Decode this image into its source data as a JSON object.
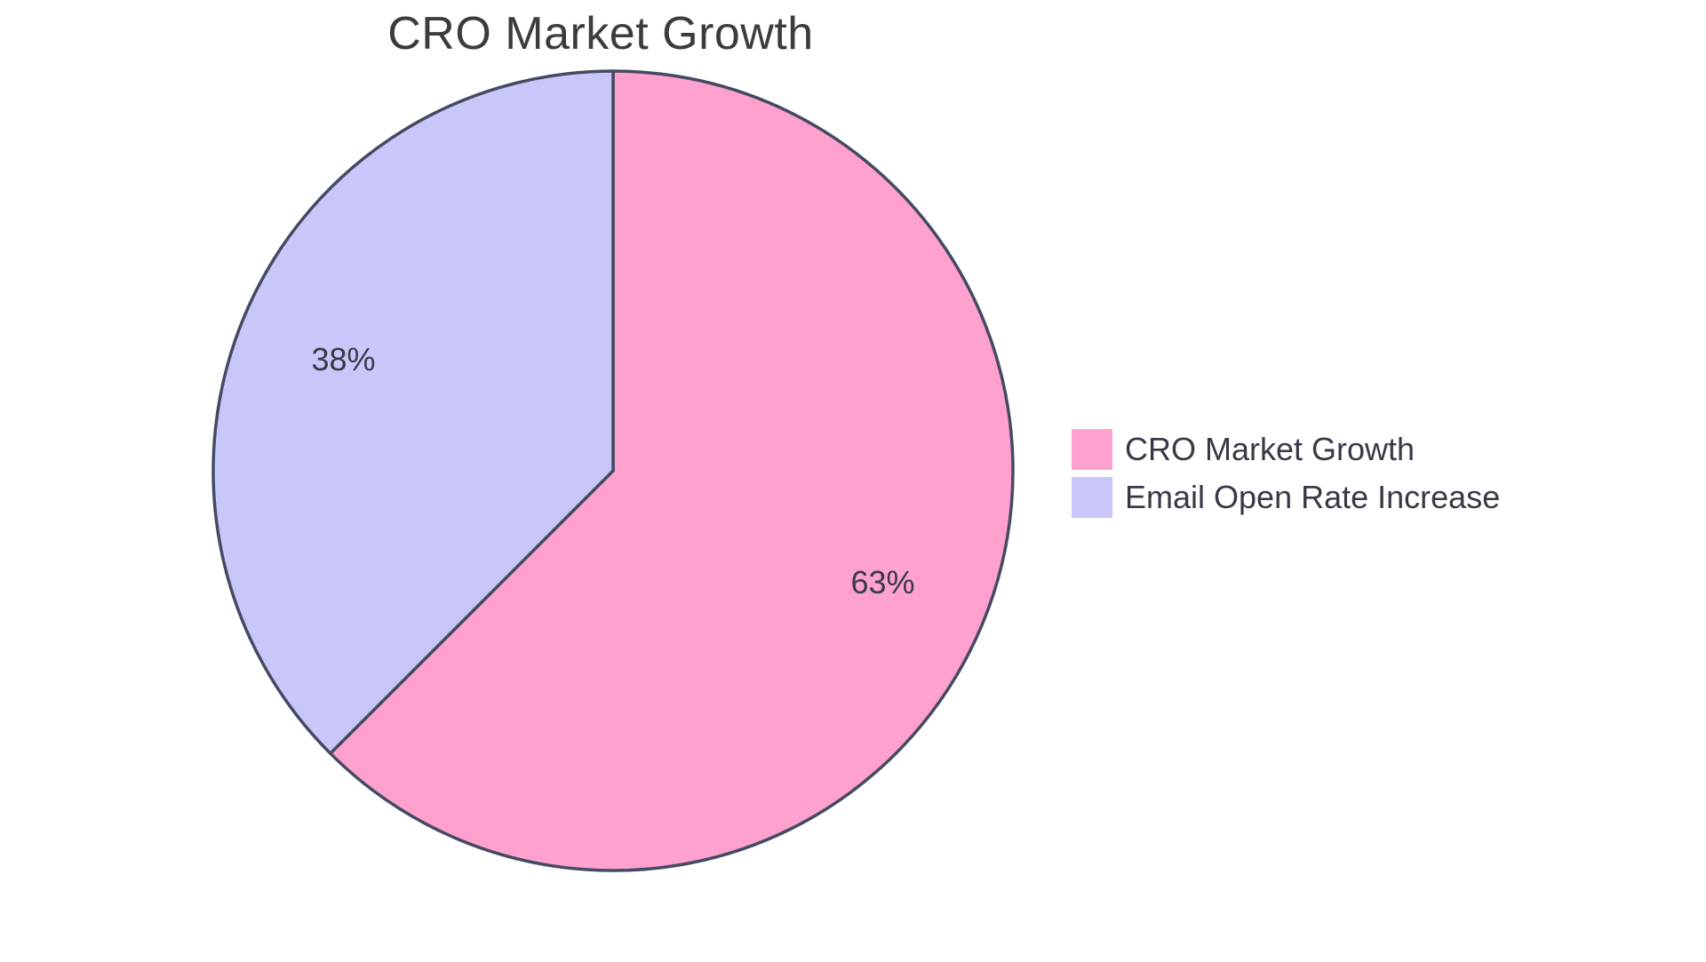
{
  "chart": {
    "title": "CRO Market Growth"
  },
  "chart_data": {
    "type": "pie",
    "title": "CRO Market Growth",
    "labels": [
      "CRO Market Growth",
      "Email Open Rate Increase"
    ],
    "values": [
      62.5,
      37.5
    ],
    "display_labels": [
      "63%",
      "38%"
    ],
    "colors": [
      "#FFA1CE",
      "#C9C7FA"
    ],
    "slice_border_color": "#454A63",
    "label_color": "#363A46",
    "start_angle": "top",
    "direction": "clockwise",
    "legend_position": "right",
    "background": "#FFFFFF"
  },
  "legend": {
    "items": [
      {
        "label": "CRO Market Growth",
        "color": "#FFA1CE"
      },
      {
        "label": "Email Open Rate Increase",
        "color": "#C9C7FA"
      }
    ]
  }
}
